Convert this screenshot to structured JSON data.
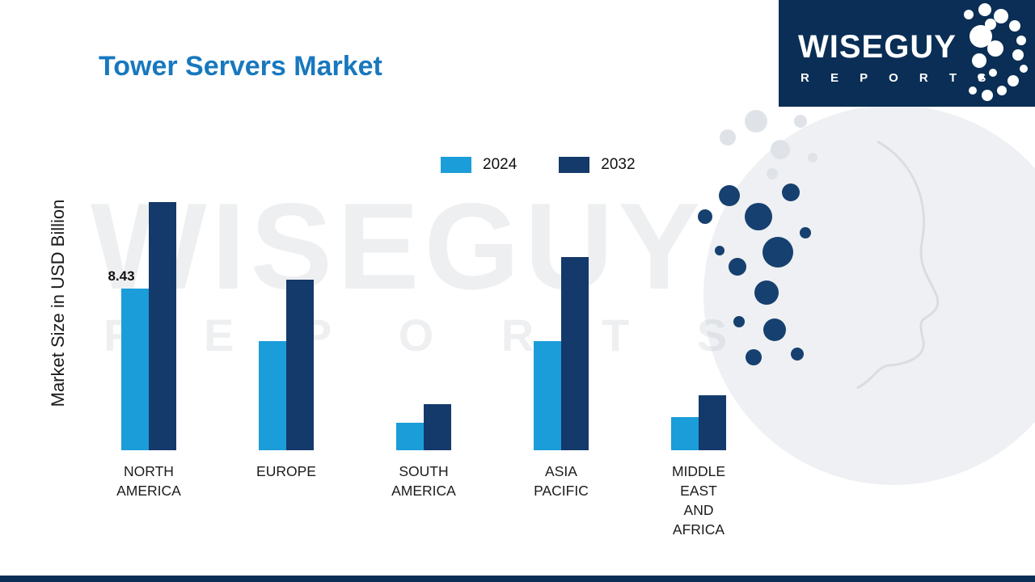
{
  "page": {
    "title": "Tower Servers Market"
  },
  "logo": {
    "line1": "WISEGUY",
    "line2": "R E P O R T S"
  },
  "watermark": {
    "line1": "WISEGUY",
    "line2": "R E P O R T S"
  },
  "colors": {
    "title": "#1878be",
    "series_2024": "#1b9dd9",
    "series_2032": "#14396b",
    "logo_background": "#0a2e55",
    "bottom_strip": "#0a2e55"
  },
  "chart_data": {
    "type": "bar",
    "title": "Tower Servers Market",
    "ylabel": "Market Size in USD Billion",
    "xlabel": "",
    "ylim": [
      0,
      13.5
    ],
    "grid": false,
    "legend_position": "top",
    "categories": [
      "NORTH AMERICA",
      "EUROPE",
      "SOUTH AMERICA",
      "ASIA PACIFIC",
      "MIDDLE EAST AND AFRICA"
    ],
    "category_lines": [
      [
        "NORTH",
        "AMERICA"
      ],
      [
        "EUROPE"
      ],
      [
        "SOUTH",
        "AMERICA"
      ],
      [
        "ASIA",
        "PACIFIC"
      ],
      [
        "MIDDLE",
        "EAST",
        "AND",
        "AFRICA"
      ]
    ],
    "series": [
      {
        "name": "2024",
        "color": "#1b9dd9",
        "values": [
          8.43,
          5.7,
          1.45,
          5.7,
          1.75
        ]
      },
      {
        "name": "2032",
        "color": "#14396b",
        "values": [
          12.95,
          8.9,
          2.4,
          10.1,
          2.85
        ]
      }
    ],
    "annotations": [
      {
        "series_index": 0,
        "category_index": 0,
        "text": "8.43"
      }
    ]
  }
}
